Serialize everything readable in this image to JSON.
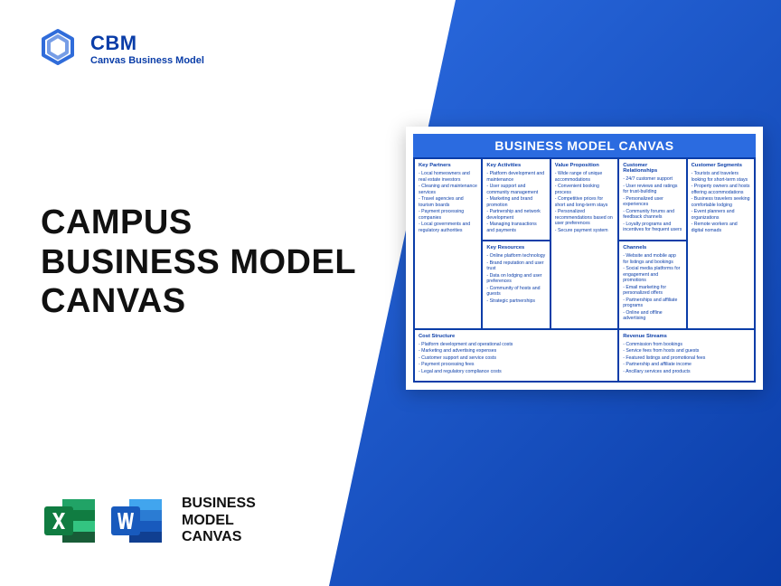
{
  "brand": {
    "abbr": "CBM",
    "name": "Canvas Business Model"
  },
  "title": {
    "line1": "CAMPUS",
    "line2": "BUSINESS MODEL",
    "line3": "CANVAS"
  },
  "apps_label": {
    "l1": "BUSINESS",
    "l2": "MODEL",
    "l3": "CANVAS"
  },
  "canvas": {
    "title": "BUSINESS MODEL CANVAS",
    "kp": {
      "h": "Key Partners",
      "items": [
        "Local homeowners and real estate investors",
        "Cleaning and maintenance services",
        "Travel agencies and tourism boards",
        "Payment processing companies",
        "Local governments and regulatory authorities"
      ]
    },
    "ka": {
      "h": "Key Activities",
      "items": [
        "Platform development and maintenance",
        "User support and community management",
        "Marketing and brand promotion",
        "Partnership and network development",
        "Managing transactions and payments"
      ]
    },
    "kr": {
      "h": "Key Resources",
      "items": [
        "Online platform technology",
        "Brand reputation and user trust",
        "Data on lodging and user preferences",
        "Community of hosts and guests",
        "Strategic partnerships"
      ]
    },
    "vp": {
      "h": "Value Proposition",
      "items": [
        "Wide range of unique accommodations",
        "Convenient booking process",
        "Competitive prices for short and long-term stays",
        "Personalized recommendations based on user preferences",
        "Secure payment system"
      ]
    },
    "cr": {
      "h": "Customer Relationships",
      "items": [
        "24/7 customer support",
        "User reviews and ratings for trust-building",
        "Personalized user experiences",
        "Community forums and feedback channels",
        "Loyalty programs and incentives for frequent users"
      ]
    },
    "ch": {
      "h": "Channels",
      "items": [
        "Website and mobile app for listings and bookings",
        "Social media platforms for engagement and promotions",
        "Email marketing for personalized offers",
        "Partnerships and affiliate programs",
        "Online and offline advertising"
      ]
    },
    "cs": {
      "h": "Customer Segments",
      "items": [
        "Tourists and travelers looking for short-term stays",
        "Property owners and hosts offering accommodations",
        "Business travelers seeking comfortable lodging",
        "Event planners and organizations",
        "Remote workers and digital nomads"
      ]
    },
    "cost": {
      "h": "Cost Structure",
      "items": [
        "Platform development and operational costs",
        "Marketing and advertising expenses",
        "Customer support and service costs",
        "Payment processing fees",
        "Legal and regulatory compliance costs"
      ]
    },
    "rev": {
      "h": "Revenue Streams",
      "items": [
        "Commission from bookings",
        "Service fees from hosts and guests",
        "Featured listings and promotional fees",
        "Partnership and affiliate income",
        "Ancillary services and products"
      ]
    }
  },
  "colors": {
    "accent": "#2b6be0",
    "dark": "#0a3da8",
    "excel": "#107c41",
    "word": "#185abd"
  }
}
